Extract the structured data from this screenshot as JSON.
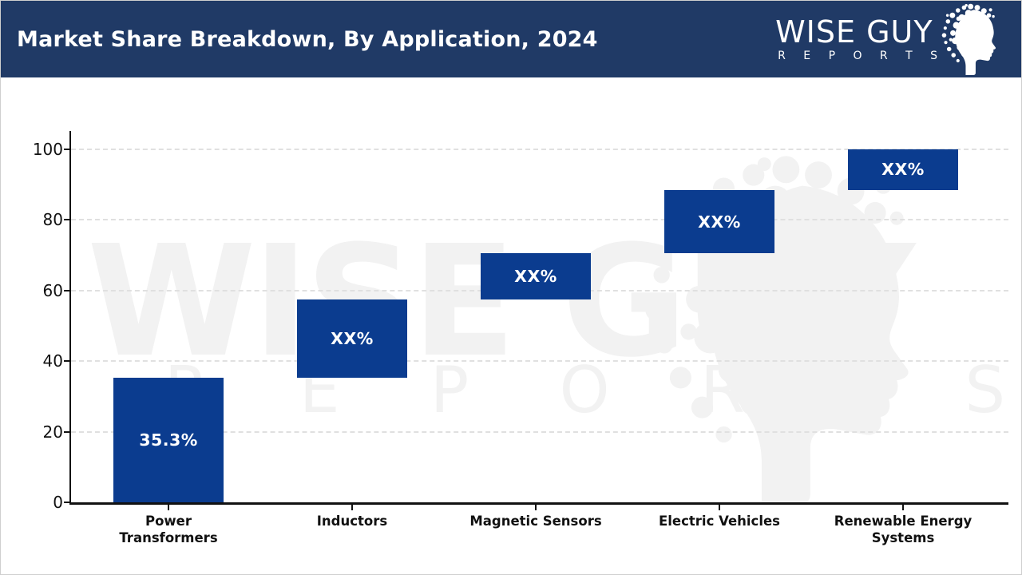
{
  "header": {
    "title": "Market Share Breakdown, By Application, 2024",
    "logo": {
      "line1": "WISE GUY",
      "line2": "R E P O R T S"
    }
  },
  "watermark": {
    "line1": "WISE GUY",
    "line2": "R E P O R T S"
  },
  "colors": {
    "header_bg": "#203a66",
    "bar": "#0b3c8f",
    "grid": "#e0e0e0",
    "axis": "#111111",
    "watermark": "#f2f2f2",
    "bar_label": "#ffffff",
    "title_text": "#ffffff"
  },
  "chart_data": {
    "type": "bar",
    "subtype": "waterfall",
    "title": "Market Share Breakdown, By Application, 2024",
    "xlabel": "",
    "ylabel": "",
    "ylim": [
      0,
      105
    ],
    "yticks": [
      0,
      20,
      40,
      60,
      80,
      100
    ],
    "grid": "horizontal-dashed",
    "legend": "none",
    "categories": [
      "Power Transformers",
      "Inductors",
      "Magnetic Sensors",
      "Electric Vehicles",
      "Renewable Energy Systems"
    ],
    "segments": [
      {
        "category": "Power Transformers",
        "start": 0,
        "end": 35.3,
        "label": "35.3%"
      },
      {
        "category": "Inductors",
        "start": 35.3,
        "end": 57.5,
        "label": "XX%"
      },
      {
        "category": "Magnetic Sensors",
        "start": 57.5,
        "end": 70.5,
        "label": "XX%"
      },
      {
        "category": "Electric Vehicles",
        "start": 70.5,
        "end": 88.5,
        "label": "XX%"
      },
      {
        "category": "Renewable Energy Systems",
        "start": 88.5,
        "end": 100,
        "label": "XX%"
      }
    ]
  }
}
